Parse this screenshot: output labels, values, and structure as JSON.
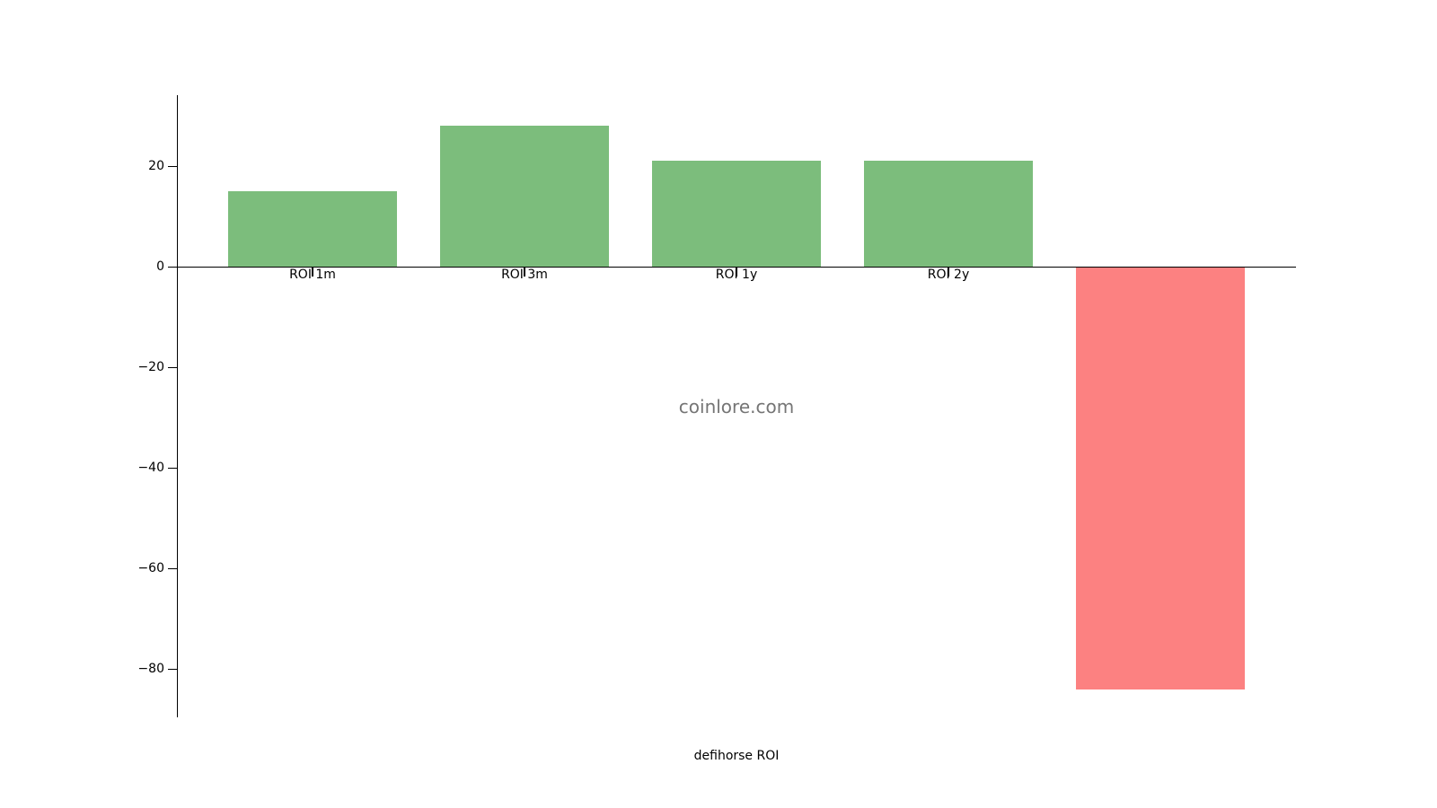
{
  "colors": {
    "positive_bar": "#7cbd7c",
    "negative_bar": "#fc8181",
    "axis": "#000000",
    "watermark": "#757575",
    "background": "#ffffff"
  },
  "watermark_text": "coinlore.com",
  "chart_data": {
    "type": "bar",
    "title": "",
    "xlabel": "defihorse ROI",
    "ylabel": "",
    "categories": [
      "ROI 1m",
      "ROI 3m",
      "ROI 1y",
      "ROI 2y",
      ""
    ],
    "values": [
      15,
      28.2,
      21.1,
      21.1,
      -84
    ],
    "bar_colors": [
      "#7cbd7c",
      "#7cbd7c",
      "#7cbd7c",
      "#7cbd7c",
      "#fc8181"
    ],
    "yticks": [
      20,
      0,
      -20,
      -40,
      -60,
      -80
    ],
    "ytick_labels": [
      "20",
      "0",
      "−20",
      "−40",
      "−60",
      "−80"
    ],
    "ylim": [
      -89.6,
      34.2
    ],
    "grid": false,
    "legend": false,
    "watermark": "coinlore.com"
  }
}
